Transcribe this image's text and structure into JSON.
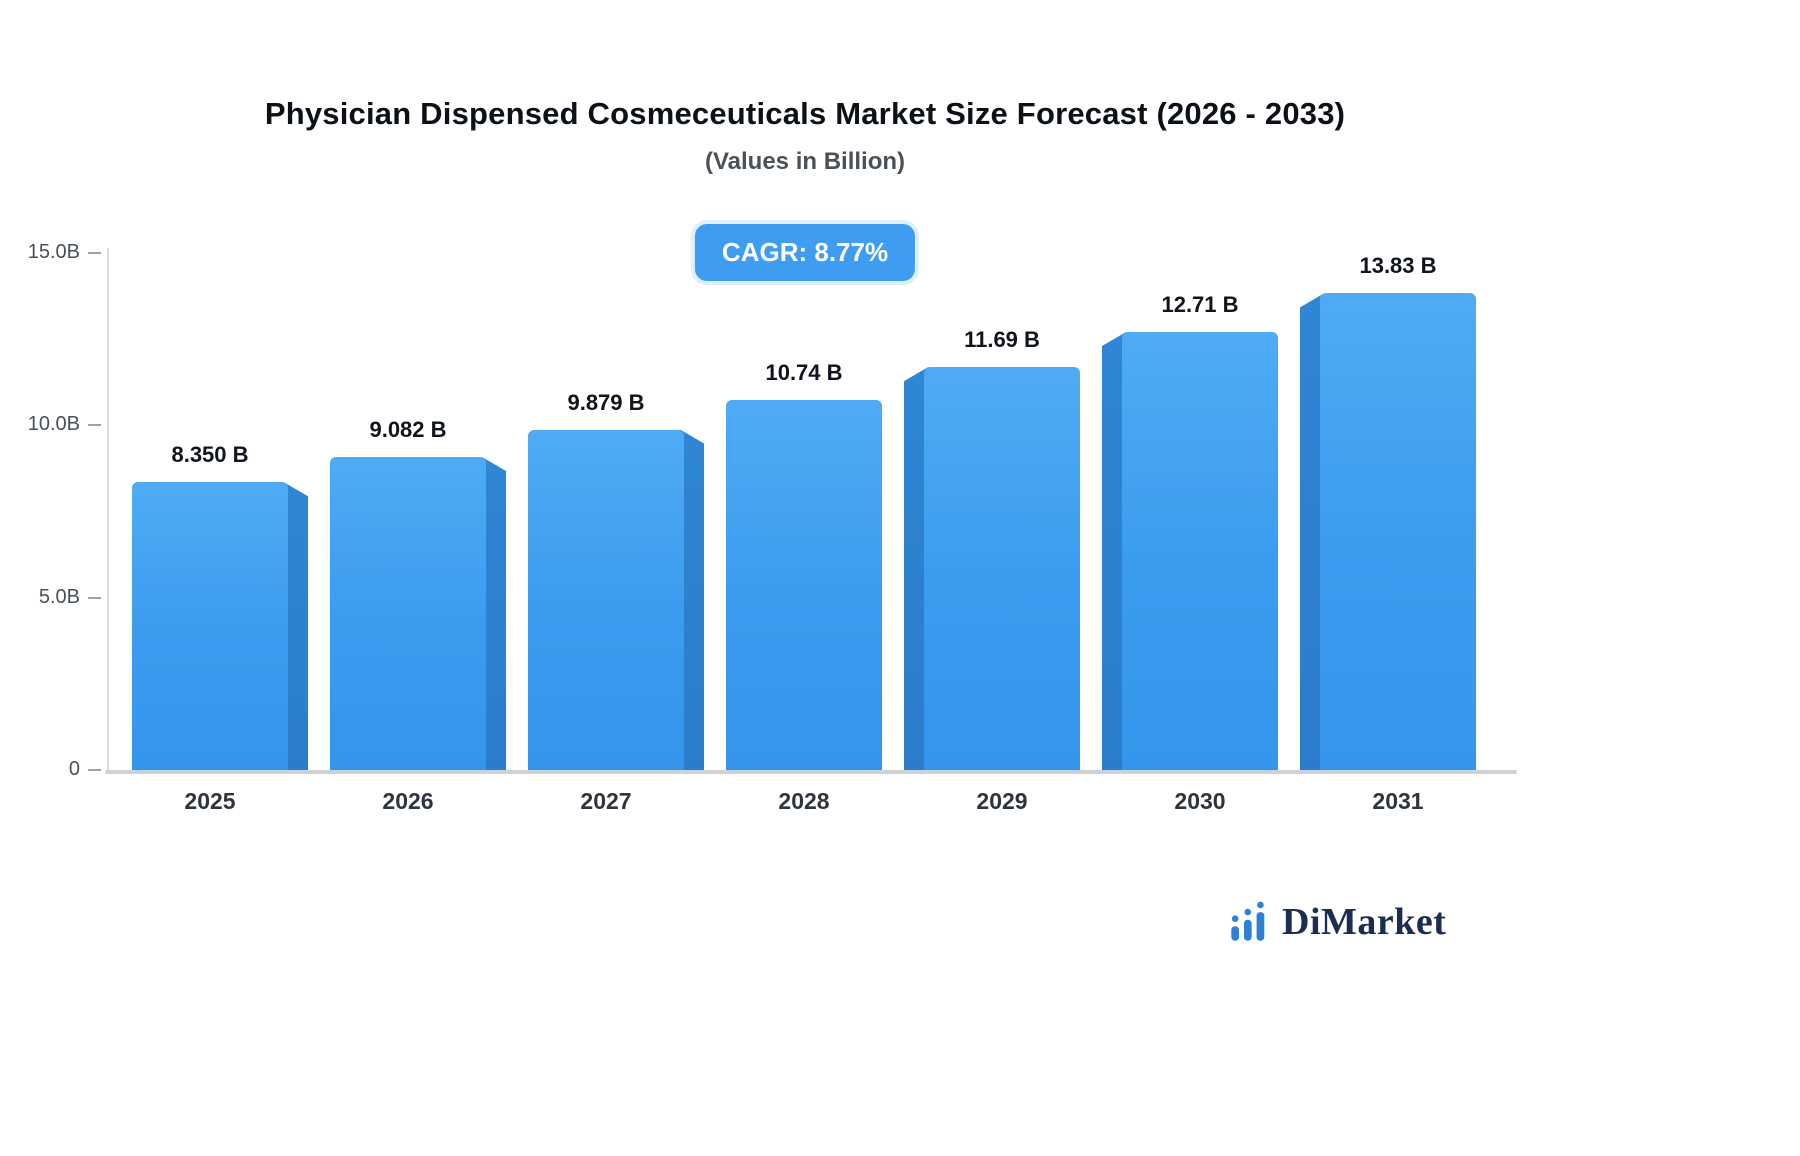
{
  "chart_data": {
    "type": "bar",
    "title": "Physician Dispensed Cosmeceuticals Market Size Forecast (2026 - 2033)",
    "subtitle": "(Values in Billion)",
    "badge_label": "CAGR: 8.77%",
    "categories": [
      "2025",
      "2026",
      "2027",
      "2028",
      "2029",
      "2030",
      "2031"
    ],
    "values": [
      8.35,
      9.082,
      9.879,
      10.74,
      11.69,
      12.71,
      13.83
    ],
    "value_labels": [
      "8.350 B",
      "9.082 B",
      "9.879 B",
      "10.74 B",
      "11.69 B",
      "12.71 B",
      "13.83 B"
    ],
    "xlabel": "",
    "ylabel": "",
    "ylim": [
      0,
      15
    ],
    "yticks": [
      {
        "value": 0,
        "label": "0"
      },
      {
        "value": 5,
        "label": "5.0B"
      },
      {
        "value": 10,
        "label": "10.0B"
      },
      {
        "value": 15,
        "label": "15.0B"
      }
    ],
    "grid": false,
    "legend": "none"
  },
  "colors": {
    "accent": "#3e9df1",
    "bar_face": "#3a9bef",
    "bar_side": "#2b7dcb",
    "title_text": "#0c1118",
    "axis_text": "#4a5058"
  },
  "logo": {
    "text": "DiMarket",
    "text_color": "#1b2d52",
    "icon_color": "#2e80d6",
    "icon": "bar-chart-dots-icon"
  }
}
